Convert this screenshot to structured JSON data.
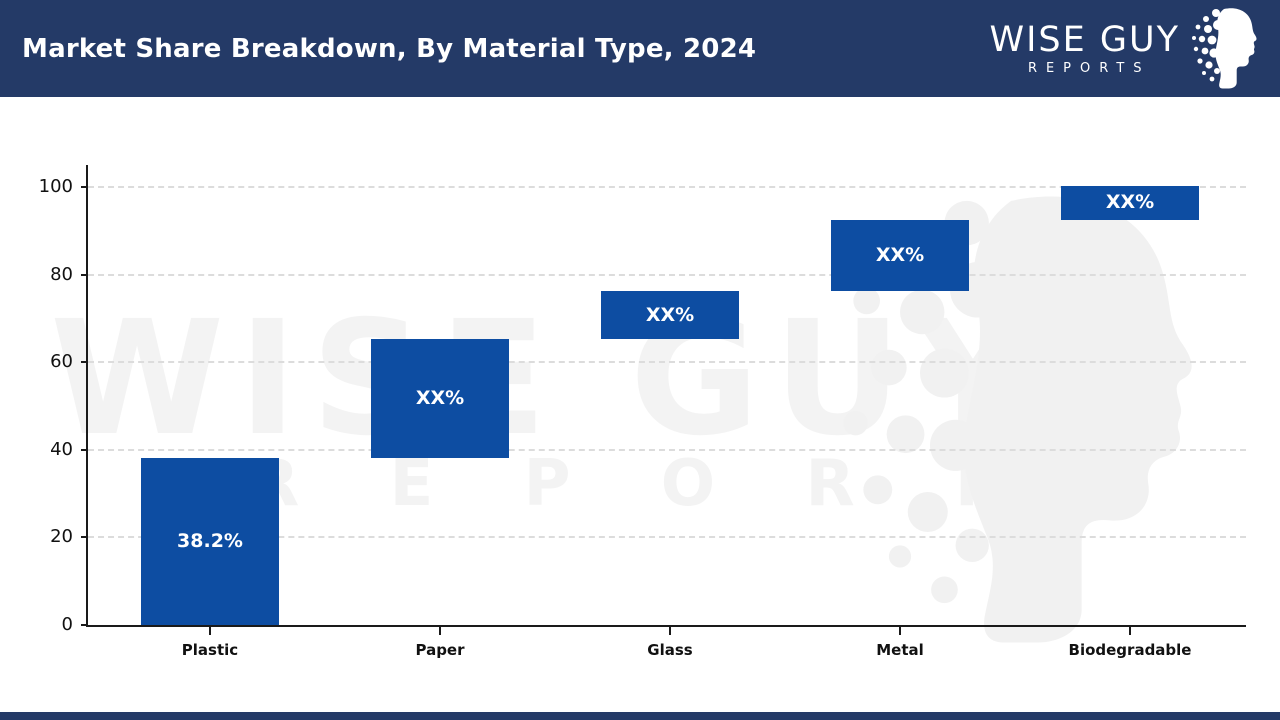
{
  "header": {
    "title": "Market Share Breakdown, By Material Type, 2024",
    "bg_color": "#243a67",
    "logo": {
      "line1": "WISE GUY",
      "line2": "REPORTS"
    }
  },
  "watermark": {
    "line1": "WISE GUY",
    "line2": "R E P O R T S",
    "color": "#f3f3f3"
  },
  "chart_data": {
    "type": "bar",
    "subtype": "waterfall",
    "title": "Market Share Breakdown, By Material Type, 2024",
    "xlabel": "",
    "ylabel": "",
    "categories": [
      "Plastic",
      "Paper",
      "Glass",
      "Metal",
      "Biodegradable"
    ],
    "segments": [
      {
        "category": "Plastic",
        "start": 0,
        "end": 38.2,
        "label": "38.2%"
      },
      {
        "category": "Paper",
        "start": 38.2,
        "end": 65.3,
        "label": "XX%"
      },
      {
        "category": "Glass",
        "start": 65.3,
        "end": 76.3,
        "label": "XX%"
      },
      {
        "category": "Metal",
        "start": 76.3,
        "end": 92.5,
        "label": "XX%"
      },
      {
        "category": "Biodegradable",
        "start": 92.5,
        "end": 100.2,
        "label": "XX%"
      }
    ],
    "y_ticks": [
      0,
      20,
      40,
      60,
      80,
      100
    ],
    "ylim": [
      0,
      104
    ],
    "grid": "dashed-horizontal",
    "legend": "none",
    "bar_color": "#0d4da2",
    "bar_label_color": "#ffffff",
    "axis_color": "#1a1a1a",
    "gridline_color": "#dcdcdc"
  }
}
